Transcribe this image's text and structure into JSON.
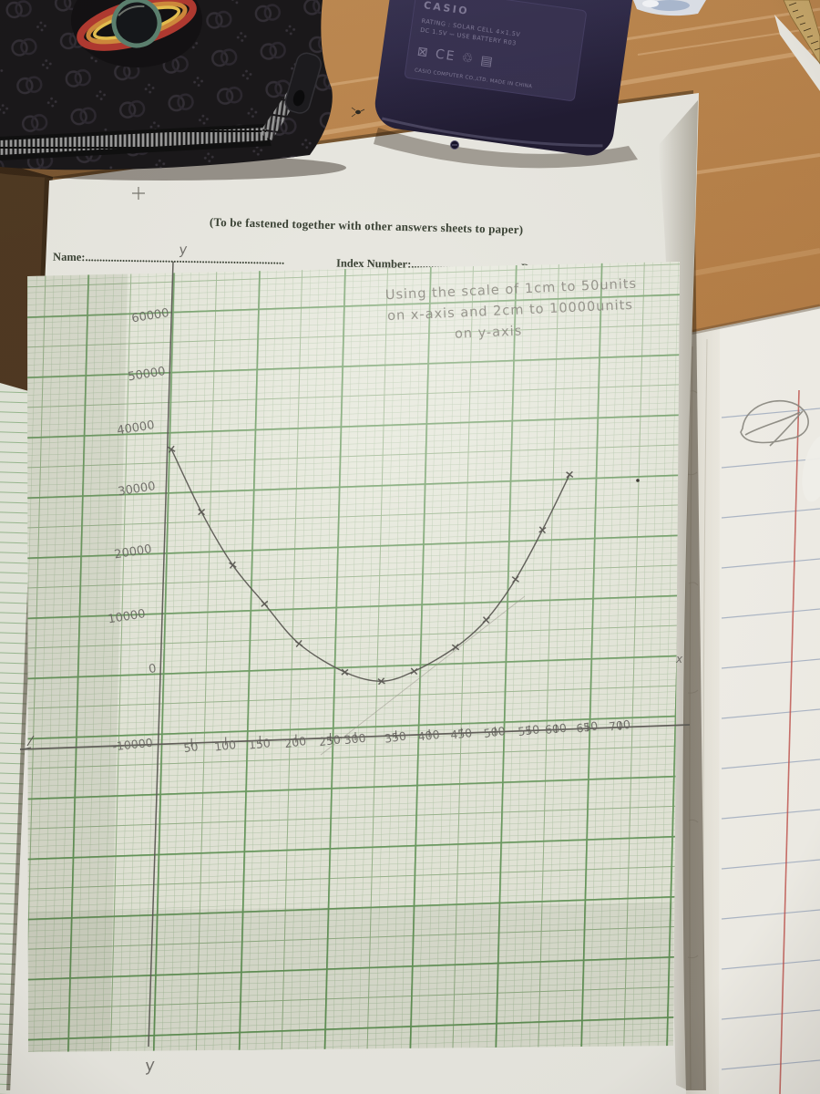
{
  "printed": {
    "header": "(To be fastened together with other answers sheets to paper)",
    "name_line": "Name:......................................................................",
    "index_line": "Index Number:.................................",
    "date_line": "Date..........................."
  },
  "handwriting": {
    "scale_note_line1": "Using the scale of 1cm to 50units",
    "scale_note_line2": "on x-axis and 2cm to 10000units",
    "scale_note_line3": "on y-axis",
    "y_axis_letter_top": "y",
    "y_axis_letter_bottom": "y",
    "x_axis_letter": "x"
  },
  "chart_data": {
    "type": "line",
    "title": "",
    "xlabel": "x",
    "ylabel": "y",
    "x_scale_note": "1 cm : 50 units",
    "y_scale_note": "2 cm : 10000 units",
    "grid": true,
    "x": [
      0,
      50,
      100,
      150,
      200,
      250,
      300,
      350,
      400,
      450,
      500,
      550,
      600
    ],
    "y": [
      36000,
      26000,
      17500,
      11500,
      4500,
      -1000,
      -2500,
      -1000,
      4000,
      9000,
      15000,
      23000,
      32000
    ],
    "x_ticks": [
      50,
      100,
      150,
      200,
      250,
      300,
      350,
      400,
      450,
      500,
      550,
      600,
      650,
      700
    ],
    "y_ticks": [
      60000,
      50000,
      40000,
      30000,
      20000,
      10000,
      0
    ],
    "baseline_label": "-10000",
    "x_axis_drawn_at_y": -10000,
    "marker": "x"
  },
  "calculator": {
    "brand": "CASIO",
    "line1": "RATING : SOLAR CELL  4×1.5V",
    "line2": "DC 1.5V ⎓ USE BATTERY R03",
    "symbols": "⊠   CE   ♲   ▤",
    "line3": "CASIO COMPUTER CO.,LTD.  MADE IN CHINA"
  }
}
